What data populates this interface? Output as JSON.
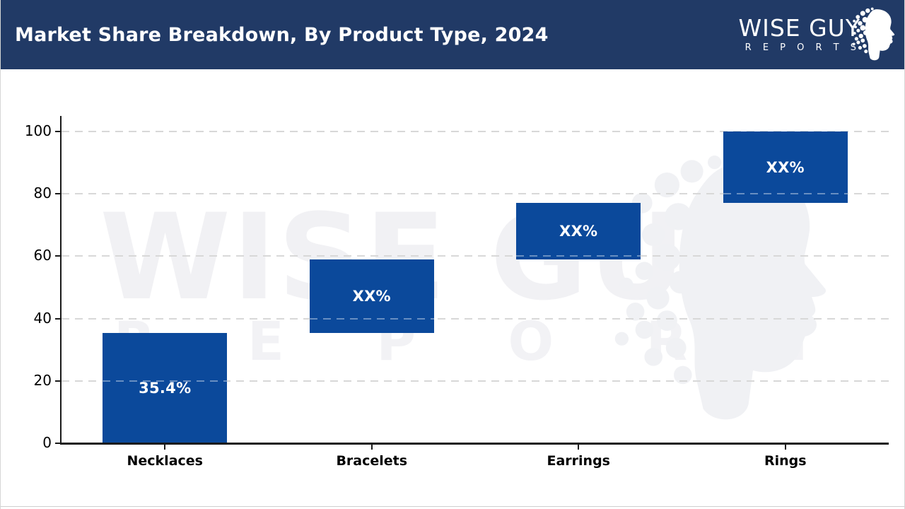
{
  "header": {
    "title": "Market Share Breakdown, By Product Type, 2024",
    "background_color": "#213a66",
    "logo": {
      "name": "WISE GUY",
      "tagline": "R E P O R T S"
    }
  },
  "watermark": {
    "line1": "WISE GUY",
    "line2": "R E P O R T S"
  },
  "chart_data": {
    "type": "bar",
    "variant": "waterfall",
    "title": "Market Share Breakdown, By Product Type, 2024",
    "categories": [
      "Necklaces",
      "Bracelets",
      "Earrings",
      "Rings"
    ],
    "segments": [
      {
        "category": "Necklaces",
        "start": 0,
        "end": 35.4,
        "label": "35.4%"
      },
      {
        "category": "Bracelets",
        "start": 35.4,
        "end": 59,
        "label": "XX%"
      },
      {
        "category": "Earrings",
        "start": 59,
        "end": 77,
        "label": "XX%"
      },
      {
        "category": "Rings",
        "start": 77,
        "end": 100,
        "label": "XX%"
      }
    ],
    "ylim": [
      0,
      100
    ],
    "yticks": [
      0,
      20,
      40,
      60,
      80,
      100
    ],
    "xlabel": "",
    "ylabel": "",
    "grid": "dashed-horizontal",
    "legend": "none",
    "bar_color": "#0b499b",
    "bar_label_color": "#ffffff",
    "axis_color": "#1a1a1a",
    "gridline_color": "#d8d8d8"
  }
}
